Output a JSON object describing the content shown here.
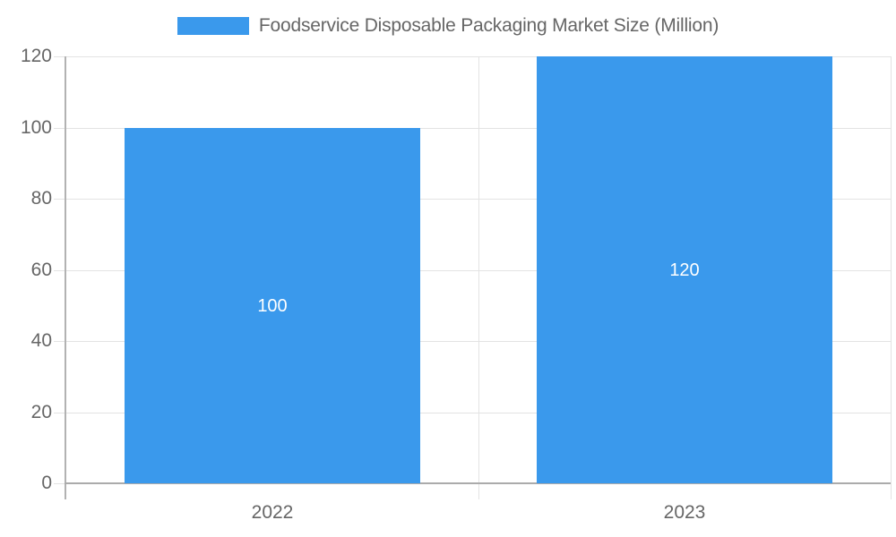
{
  "chart_data": {
    "type": "bar",
    "title": "Foodservice Disposable Packaging Market Size (Million)",
    "categories": [
      "2022",
      "2023"
    ],
    "series": [
      {
        "name": "Foodservice Disposable Packaging Market Size (Million)",
        "values": [
          100,
          120
        ]
      }
    ],
    "data_labels": [
      "100",
      "120"
    ],
    "xlabel": "",
    "ylabel": "",
    "ylim": [
      0,
      120
    ],
    "yticks": [
      0,
      20,
      40,
      60,
      80,
      100,
      120
    ],
    "grid": true,
    "legend_position": "top",
    "colors": {
      "bar": "#3a99ec",
      "bar_value_text": "#ffffff",
      "axis_text": "#666666",
      "gridline": "#e3e3e3",
      "axis_line": "#ababab"
    }
  },
  "legend": {
    "label": "Foodservice Disposable Packaging Market Size (Million)"
  }
}
